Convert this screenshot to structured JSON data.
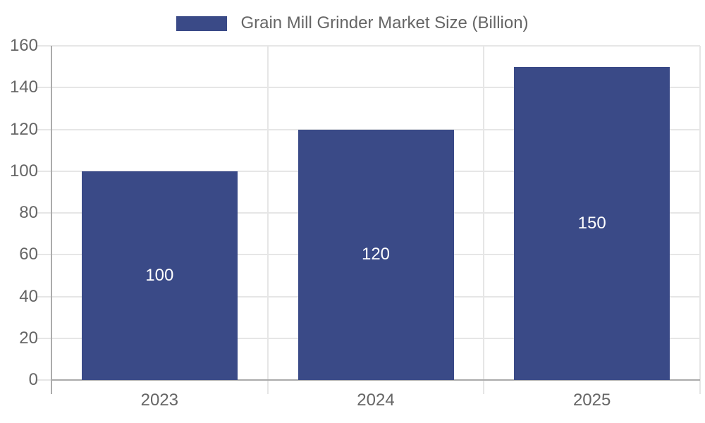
{
  "chart_data": {
    "type": "bar",
    "title": "Grain Mill Grinder Market Size (Billion)",
    "categories": [
      "2023",
      "2024",
      "2025"
    ],
    "values": [
      100,
      120,
      150
    ],
    "series": [
      {
        "name": "Grain Mill Grinder Market Size (Billion)",
        "values": [
          100,
          120,
          150
        ]
      }
    ],
    "xlabel": "",
    "ylabel": "",
    "ylim": [
      0,
      160
    ],
    "yticks": [
      0,
      20,
      40,
      60,
      80,
      100,
      120,
      140,
      160
    ],
    "grid": true,
    "legend_position": "top-center",
    "bar_value_labels": [
      "100",
      "120",
      "150"
    ]
  },
  "legend": {
    "label": "Grain Mill Grinder Market Size (Billion)"
  },
  "colors": {
    "bar": "#3A4A87",
    "grid": "#E6E6E6",
    "axis": "#ABABAB",
    "text": "#666666",
    "bar_label": "#FFFFFF",
    "background": "#FFFFFF"
  }
}
